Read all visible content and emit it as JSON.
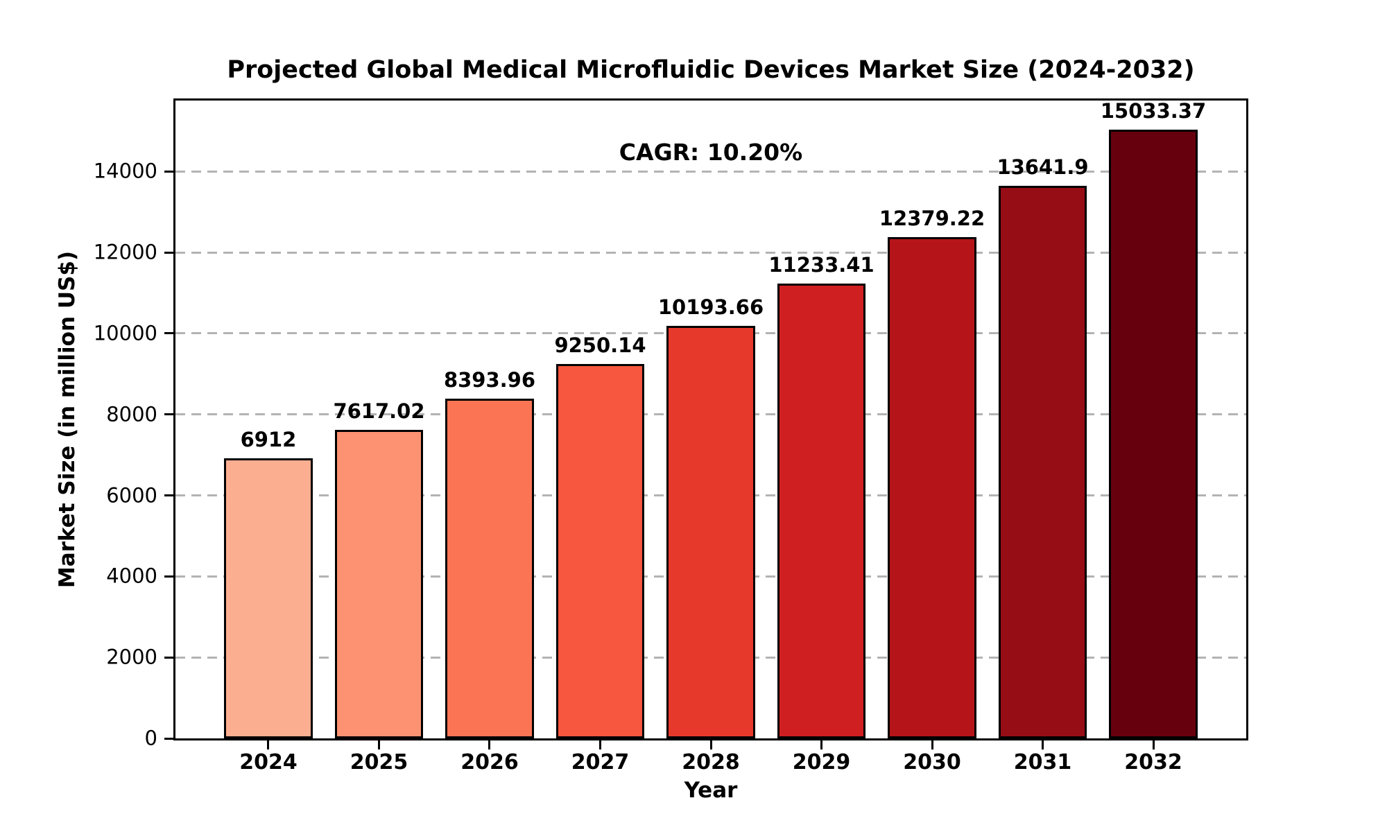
{
  "figure": {
    "title": "Projected Global Medical Microfluidic Devices Market Size (2024-2032)",
    "annotation": "CAGR: 10.20%"
  },
  "chart_data": {
    "type": "bar",
    "title": "Projected Global Medical Microfluidic Devices Market Size (2024-2032)",
    "annotation": "CAGR: 10.20%",
    "xlabel": "Year",
    "ylabel": "Market Size (in million US$)",
    "categories": [
      "2024",
      "2025",
      "2026",
      "2027",
      "2028",
      "2029",
      "2030",
      "2031",
      "2032"
    ],
    "values": [
      6912,
      7617.02,
      8393.96,
      9250.14,
      10193.66,
      11233.41,
      12379.22,
      13641.9,
      15033.37
    ],
    "value_labels": [
      "6912",
      "7617.02",
      "8393.96",
      "9250.14",
      "10193.66",
      "11233.41",
      "12379.22",
      "13641.9",
      "15033.37"
    ],
    "bar_colors": [
      "#fcae91",
      "#fc9272",
      "#fb7555",
      "#f6573e",
      "#e7392b",
      "#d01f21",
      "#b51419",
      "#960d15",
      "#67000d"
    ],
    "bar_edge_color": "#000000",
    "yticks": [
      0,
      2000,
      4000,
      6000,
      8000,
      10000,
      12000,
      14000
    ],
    "ylim": [
      0,
      15750
    ],
    "bar_width_fraction": 0.8,
    "x_padding_units": 0.84,
    "grid": "horizontal-dashed",
    "grid_color": "#b3b3b3",
    "legend_position": "none"
  }
}
